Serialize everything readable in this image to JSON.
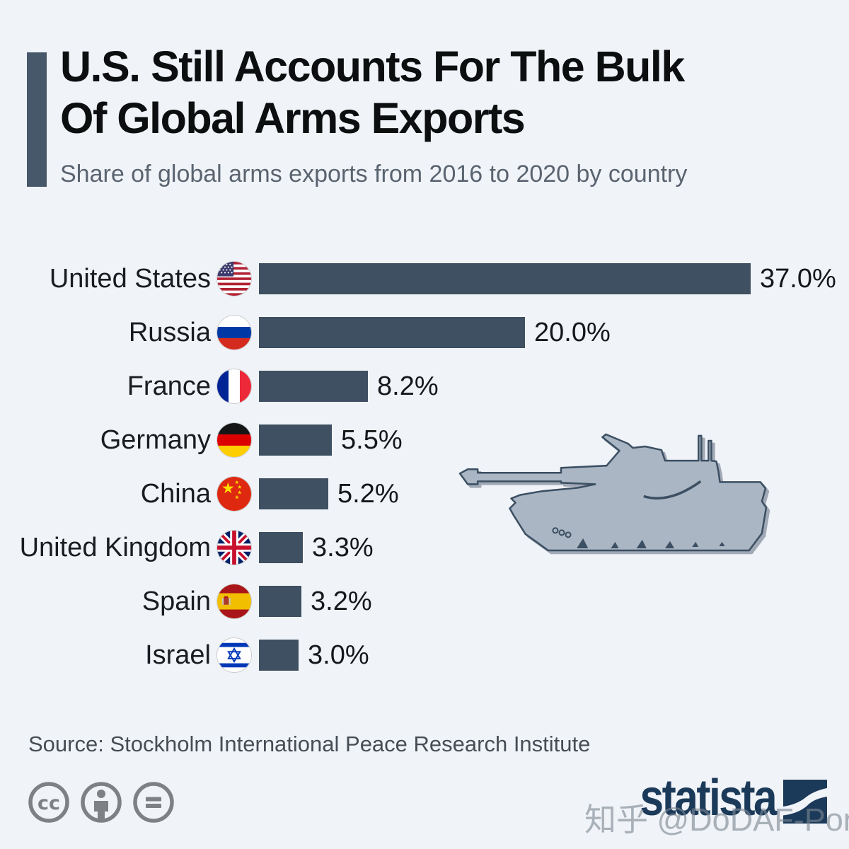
{
  "title_lines": [
    "U.S. Still Accounts For The Bulk",
    "Of Global Arms Exports"
  ],
  "subtitle": "Share of global arms exports from 2016 to 2020 by country",
  "source": "Source: Stockholm International Peace Research Institute",
  "branding": {
    "logo_text": "statista"
  },
  "watermark": "知乎 @DoDAF-Porter",
  "footer": {
    "license_icons": [
      "cc-icon",
      "attribution-icon",
      "no-derivatives-icon"
    ]
  },
  "colors": {
    "background": "#f0f3f8",
    "bar": "#3e5061",
    "accent": "#46586a",
    "title": "#0c0e10",
    "subtitle": "#5a6470",
    "source_text": "#474d55",
    "license_gray": "#7d8084",
    "statista_navy": "#1b3a59",
    "tank_fill": "#aab6c3",
    "tank_outline": "#3c4f63"
  },
  "chart_data": {
    "type": "bar",
    "orientation": "horizontal",
    "title": "U.S. Still Accounts For The Bulk Of Global Arms Exports",
    "subtitle": "Share of global arms exports from 2016 to 2020 by country",
    "categories": [
      "United States",
      "Russia",
      "France",
      "Germany",
      "China",
      "United Kingdom",
      "Spain",
      "Israel"
    ],
    "values": [
      37.0,
      20.0,
      8.2,
      5.5,
      5.2,
      3.3,
      3.2,
      3.0
    ],
    "value_labels": [
      "37.0%",
      "20.0%",
      "8.2%",
      "5.5%",
      "5.2%",
      "3.3%",
      "3.2%",
      "3.0%"
    ],
    "flags": [
      "united-states",
      "russia",
      "france",
      "germany",
      "china",
      "united-kingdom",
      "spain",
      "israel"
    ],
    "unit": "%",
    "xlim": [
      0,
      40
    ],
    "grid": false,
    "legend": false
  }
}
